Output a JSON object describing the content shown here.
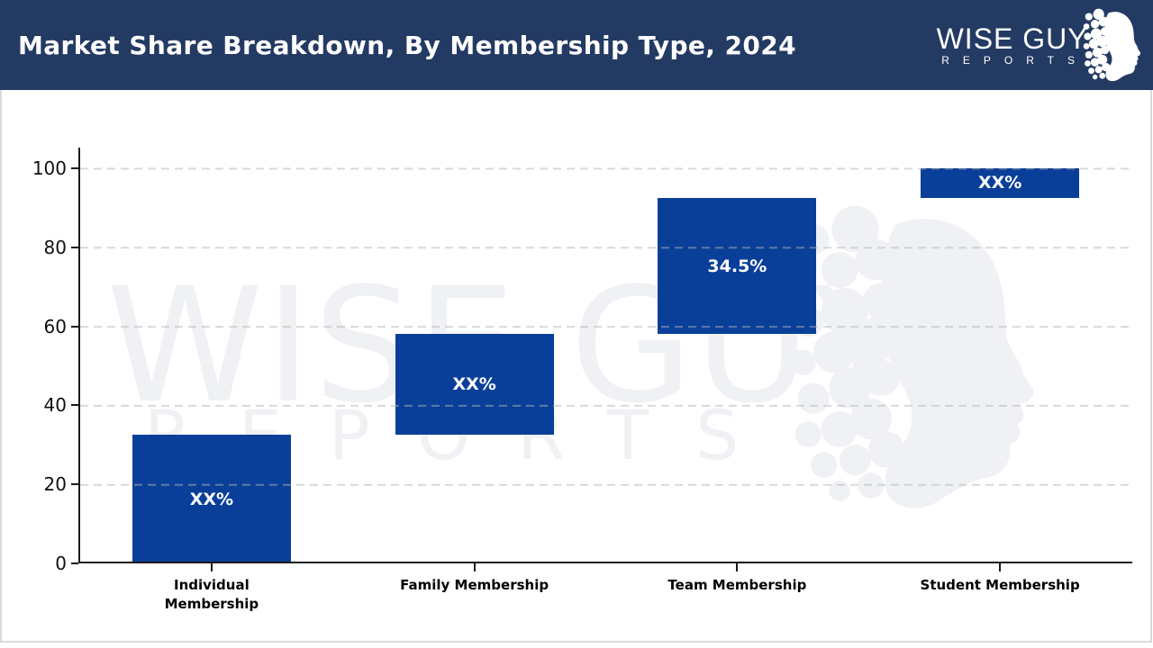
{
  "header": {
    "title": "Market Share Breakdown, By Membership Type, 2024",
    "logo": {
      "wordmark": "WISE GUY",
      "subtext": "REPORTS"
    }
  },
  "watermark": {
    "wordmark": "WISE GUY",
    "subtext": "REPORTS"
  },
  "colors": {
    "header_bg": "#233a63",
    "bar": "#0a3f99",
    "bar_label": "#ffffff",
    "axis": "#1a1a1a",
    "grid": "#d9d9d9",
    "tick_text": "#111111",
    "title_text": "#ffffff",
    "watermark": "#eff1f4"
  },
  "chart_data": {
    "type": "bar",
    "subtype": "waterfall",
    "title": "Market Share Breakdown, By Membership Type, 2024",
    "categories": [
      "Individual Membership",
      "Family Membership",
      "Team Membership",
      "Student Membership"
    ],
    "x_tick_lines": [
      [
        "Individual",
        "Membership"
      ],
      [
        "Family Membership"
      ],
      [
        "Team Membership"
      ],
      [
        "Student Membership"
      ]
    ],
    "bars": [
      {
        "category": "Individual Membership",
        "start": 0,
        "end": 32.5,
        "label": "XX%"
      },
      {
        "category": "Family Membership",
        "start": 32.5,
        "end": 58,
        "label": "XX%"
      },
      {
        "category": "Team Membership",
        "start": 58,
        "end": 92.5,
        "label": "34.5%"
      },
      {
        "category": "Student Membership",
        "start": 92.5,
        "end": 100,
        "label": "XX%"
      }
    ],
    "yticks": [
      0,
      20,
      40,
      60,
      80,
      100
    ],
    "ylim": [
      0,
      100
    ],
    "xlabel": "",
    "ylabel": "",
    "grid": "horizontal-dashed",
    "legend": "none"
  }
}
